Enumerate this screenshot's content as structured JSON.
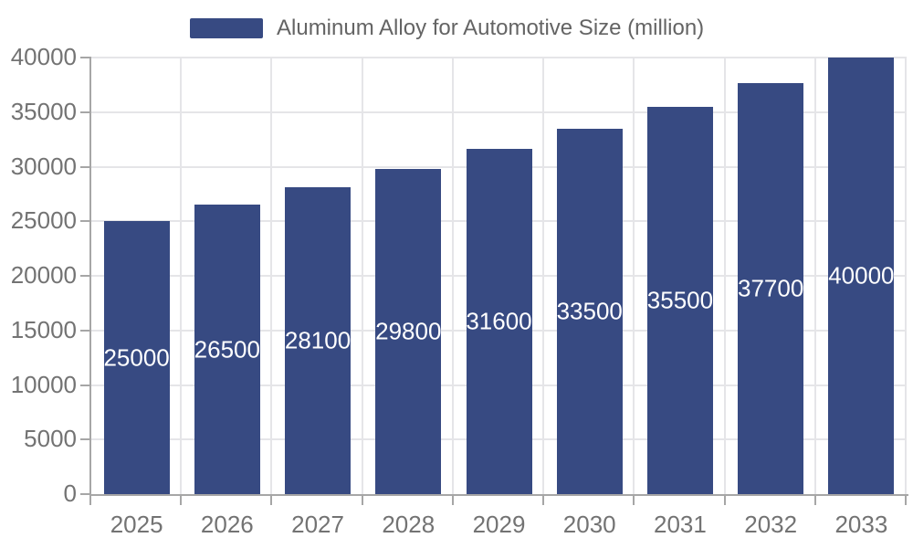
{
  "legend": {
    "label": "Aluminum Alloy for Automotive Size (million)"
  },
  "chart_data": {
    "type": "bar",
    "title": "Aluminum Alloy for Automotive Size (million)",
    "categories": [
      "2025",
      "2026",
      "2027",
      "2028",
      "2029",
      "2030",
      "2031",
      "2032",
      "2033"
    ],
    "series": [
      {
        "name": "Aluminum Alloy for Automotive Size (million)",
        "values": [
          25000,
          26500,
          28100,
          29800,
          31600,
          33500,
          35500,
          37700,
          40000
        ]
      }
    ],
    "xlabel": "",
    "ylabel": "",
    "ylim": [
      0,
      40000
    ],
    "y_ticks": [
      0,
      5000,
      10000,
      15000,
      20000,
      25000,
      30000,
      35000,
      40000
    ],
    "grid": true,
    "legend_position": "top",
    "bar_labels_inside": true,
    "colors": {
      "bar": "#374A82",
      "bar_label": "#FFFFFF",
      "grid_line": "#E5E5E8",
      "axis_line": "#A6A6A6",
      "axis_text": "#737373",
      "legend_text": "#646464",
      "background": "#FFFFFF"
    }
  }
}
